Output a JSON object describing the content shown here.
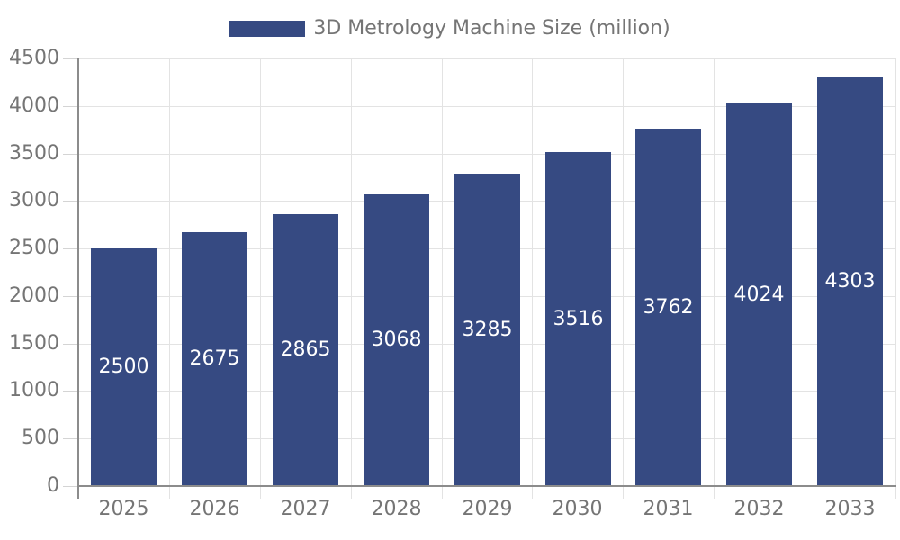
{
  "legend": {
    "label": "3D Metrology Machine Size (million)"
  },
  "chart_data": {
    "type": "bar",
    "title": "3D Metrology Machine Size (million)",
    "legend_position": "top",
    "categories": [
      "2025",
      "2026",
      "2027",
      "2028",
      "2029",
      "2030",
      "2031",
      "2032",
      "2033"
    ],
    "values": [
      2500,
      2675,
      2865,
      3068,
      3285,
      3516,
      3762,
      4024,
      4303
    ],
    "xlabel": "",
    "ylabel": "",
    "ylim": [
      0,
      4500
    ],
    "yticks": [
      0,
      500,
      1000,
      1500,
      2000,
      2500,
      3000,
      3500,
      4000,
      4500
    ],
    "grid": true,
    "value_labels": "inside-center",
    "colors": {
      "bar": "#364a82",
      "value_label": "#ffffff",
      "axis_line": "#8c8c8c",
      "grid_line": "#e3e3e3",
      "tick_mark": "#d4d4d4",
      "tick_label": "#757575",
      "legend_text": "#757575",
      "background": "#ffffff"
    }
  }
}
